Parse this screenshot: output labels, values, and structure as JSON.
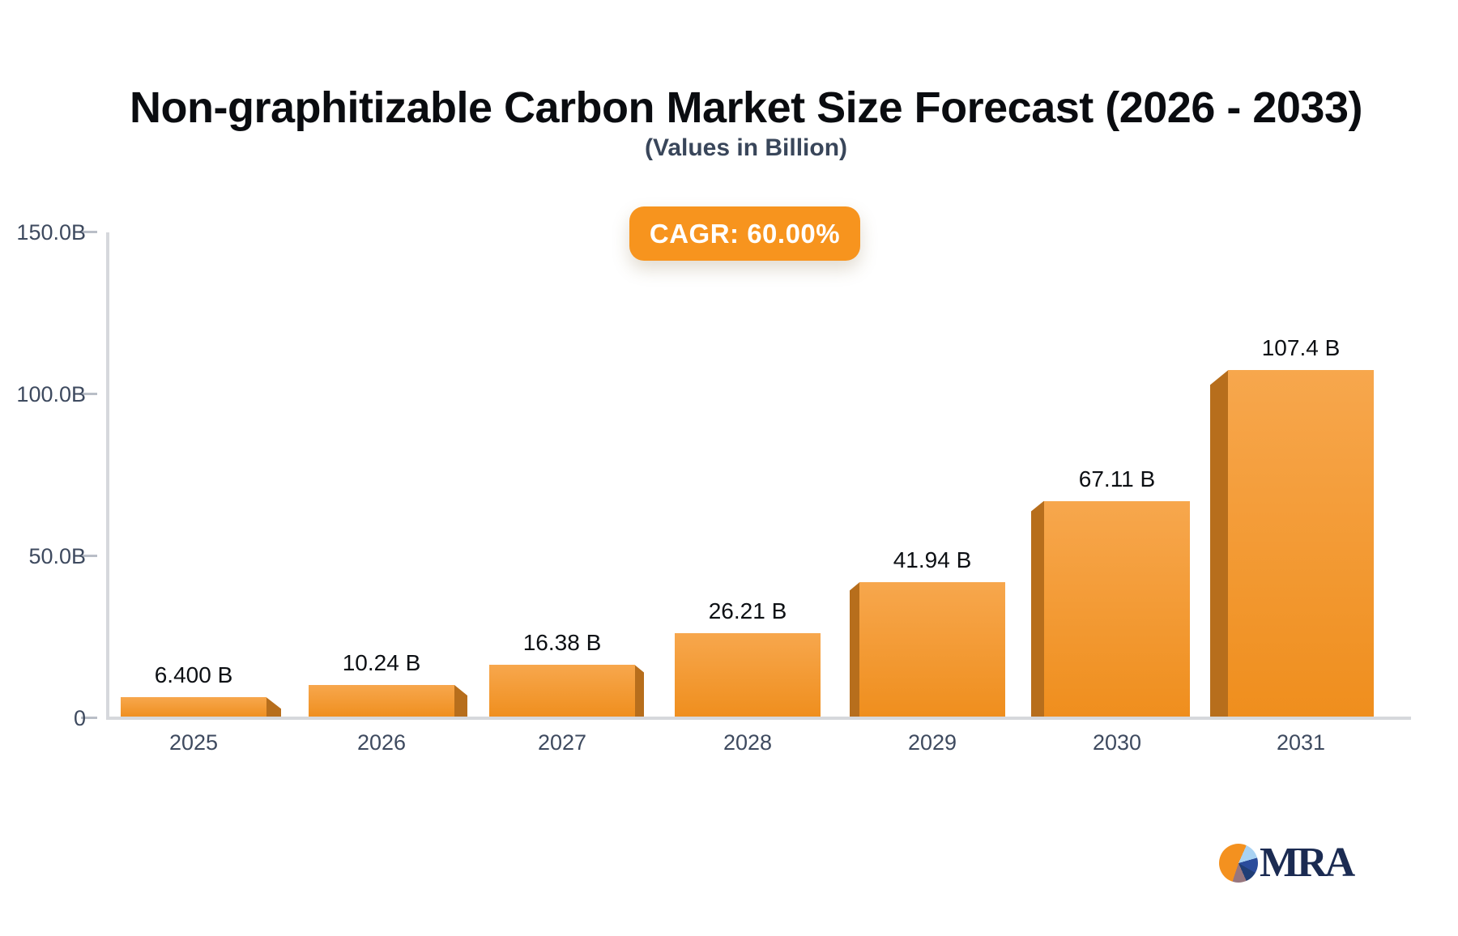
{
  "title": "Non-graphitizable Carbon Market Size Forecast (2026 - 2033)",
  "subtitle": "(Values in Billion)",
  "cagr_badge": {
    "label": "CAGR: 60.00%",
    "bg_color": "#F7941E",
    "text_color": "#FFFFFF"
  },
  "logo": {
    "text": "MRA"
  },
  "chart_data": {
    "type": "bar",
    "title": "Non-graphitizable Carbon Market Size Forecast (2026 - 2033)",
    "subtitle": "(Values in Billion)",
    "annotation": "CAGR: 60.00%",
    "categories": [
      "2025",
      "2026",
      "2027",
      "2028",
      "2029",
      "2030",
      "2031"
    ],
    "values": [
      6.4,
      10.24,
      16.38,
      26.21,
      41.94,
      67.11,
      107.4
    ],
    "value_labels": [
      "6.400 B",
      "10.24 B",
      "16.38 B",
      "26.21 B",
      "41.94 B",
      "67.11 B",
      "107.4 B"
    ],
    "unit": "Billion",
    "xlabel": "",
    "ylabel": "",
    "ylim": [
      0,
      150
    ],
    "yticks": [
      {
        "value": 0,
        "label": "0"
      },
      {
        "value": 50,
        "label": "50.0B"
      },
      {
        "value": 100,
        "label": "100.0B"
      },
      {
        "value": 150,
        "label": "150.0B"
      }
    ],
    "grid": false,
    "legend": null,
    "style": "3d-perspective-bars",
    "colors": {
      "bar_top": "#F7A74D",
      "bar_bottom": "#EF8E1D",
      "bar_side": "#B76E1C",
      "axis": "#D6D8DC",
      "tick_text": "#3E4A5F",
      "value_text": "#0D1014",
      "title_text": "#0A0C10",
      "subtitle_text": "#39465A",
      "badge": "#F7941E"
    }
  }
}
